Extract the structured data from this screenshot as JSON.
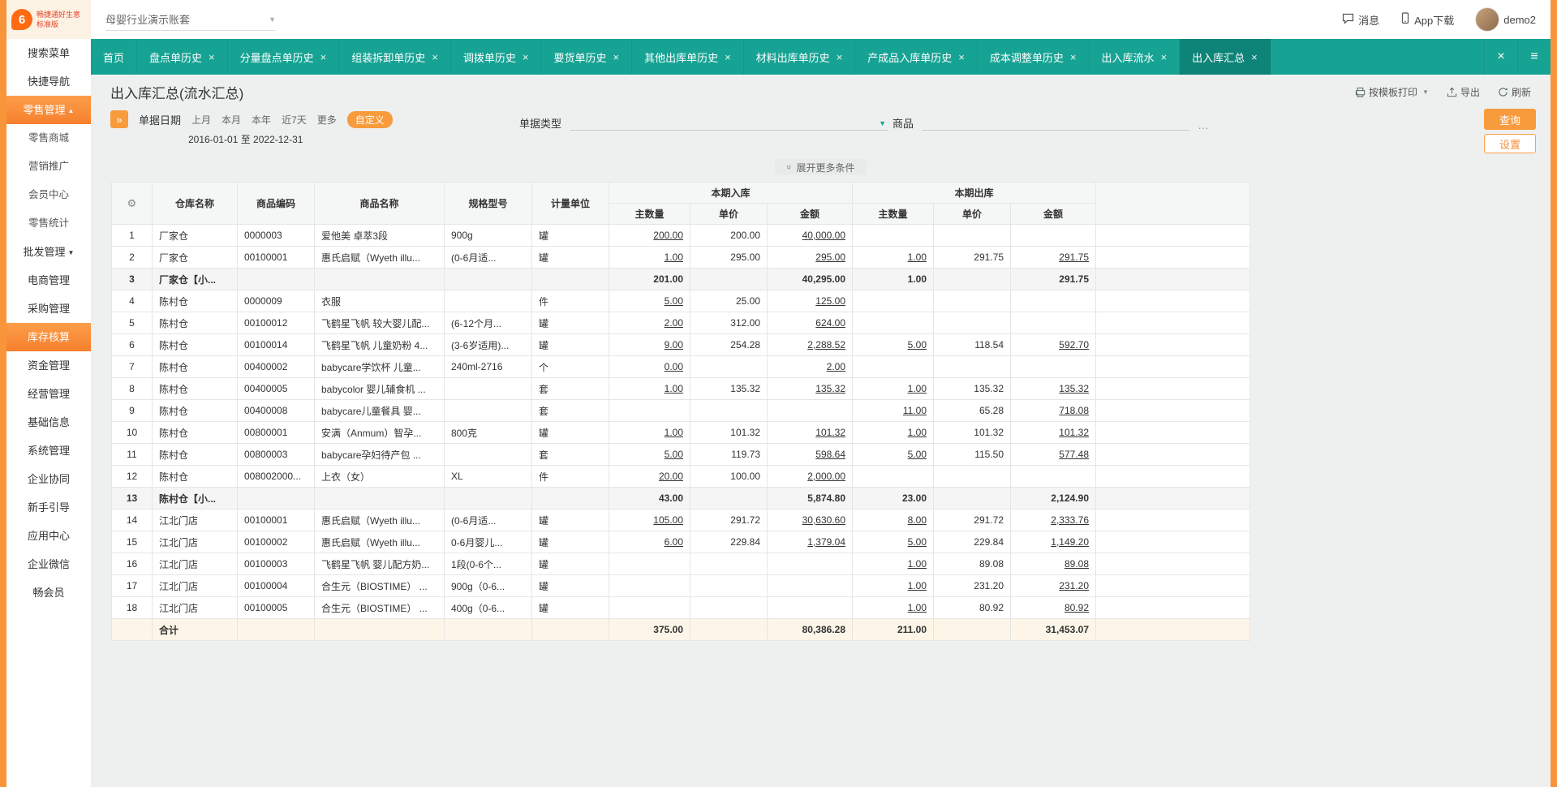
{
  "colors": {
    "teal": "#17a394",
    "teal_active_tab": "#0e8478",
    "orange": "#f89b3c",
    "edge_orange": "#f8953b",
    "total_row_bg": "#fdf5e7"
  },
  "icons": {
    "caret_down": "▼",
    "caret_up": "▲",
    "close": "×",
    "menu": "≡",
    "gear": "⚙",
    "ellipsis": "…",
    "chevrons": "»"
  },
  "topbar": {
    "brand": {
      "badge": "6",
      "name": "畅捷通好生意",
      "edition": "标准版"
    },
    "account_select": {
      "value": "母婴行业演示账套"
    },
    "messages_label": "消息",
    "app_download_label": "App下载",
    "username": "demo2"
  },
  "tabbar": {
    "tabs": [
      {
        "label": "首页",
        "closable": false,
        "active": false
      },
      {
        "label": "盘点单历史",
        "closable": true,
        "active": false
      },
      {
        "label": "分量盘点单历史",
        "closable": true,
        "active": false
      },
      {
        "label": "组装拆卸单历史",
        "closable": true,
        "active": false
      },
      {
        "label": "调拨单历史",
        "closable": true,
        "active": false
      },
      {
        "label": "要货单历史",
        "closable": true,
        "active": false
      },
      {
        "label": "其他出库单历史",
        "closable": true,
        "active": false
      },
      {
        "label": "材料出库单历史",
        "closable": true,
        "active": false
      },
      {
        "label": "产成品入库单历史",
        "closable": true,
        "active": false
      },
      {
        "label": "成本调整单历史",
        "closable": true,
        "active": false
      },
      {
        "label": "出入库流水",
        "closable": true,
        "active": false
      },
      {
        "label": "出入库汇总",
        "closable": true,
        "active": true
      }
    ]
  },
  "sidebar": {
    "items": [
      {
        "label": "搜索菜单",
        "style": ""
      },
      {
        "label": "快捷导航",
        "style": ""
      },
      {
        "label": "零售管理",
        "style": "orange",
        "arrow": "up"
      },
      {
        "label": "零售商城",
        "style": "sub"
      },
      {
        "label": "营销推广",
        "style": "sub"
      },
      {
        "label": "会员中心",
        "style": "sub"
      },
      {
        "label": "零售统计",
        "style": "sub"
      },
      {
        "label": "批发管理",
        "style": "",
        "arrow": "down"
      },
      {
        "label": "电商管理",
        "style": ""
      },
      {
        "label": "采购管理",
        "style": ""
      },
      {
        "label": "库存核算",
        "style": "active"
      },
      {
        "label": "资金管理",
        "style": ""
      },
      {
        "label": "经营管理",
        "style": ""
      },
      {
        "label": "基础信息",
        "style": ""
      },
      {
        "label": "系统管理",
        "style": ""
      },
      {
        "label": "企业协同",
        "style": ""
      },
      {
        "label": "新手引导",
        "style": ""
      },
      {
        "label": "应用中心",
        "style": ""
      },
      {
        "label": "企业微信",
        "style": ""
      },
      {
        "label": "畅会员",
        "style": ""
      }
    ]
  },
  "page": {
    "title": "出入库汇总(流水汇总)",
    "print_label": "按模板打印",
    "export_label": "导出",
    "refresh_label": "刷新"
  },
  "filters": {
    "date_label": "单据日期",
    "quick_options": [
      "上月",
      "本月",
      "本年",
      "近7天",
      "更多"
    ],
    "custom_label": "自定义",
    "date_range": "2016-01-01 至 2022-12-31",
    "doc_type_label": "单据类型",
    "product_label": "商品",
    "search_label": "查询",
    "settings_label": "设置",
    "expand_more_label": "展开更多条件"
  },
  "table": {
    "headers": [
      "仓库名称",
      "商品编码",
      "商品名称",
      "规格型号",
      "计量单位"
    ],
    "groups": [
      {
        "label": "本期入库",
        "cols": [
          "主数量",
          "单价",
          "金额"
        ]
      },
      {
        "label": "本期出库",
        "cols": [
          "主数量",
          "单价",
          "金额"
        ]
      }
    ],
    "rows": [
      {
        "no": "1",
        "warehouse": "厂家仓",
        "code": "0000003",
        "name": "爱他美 卓萃3段",
        "spec": "900g",
        "unit": "罐",
        "in": [
          "200.00",
          "200.00",
          "40,000.00"
        ],
        "out": [
          "",
          "",
          ""
        ],
        "type": "data"
      },
      {
        "no": "2",
        "warehouse": "厂家仓",
        "code": "00100001",
        "name": "惠氏启赋（Wyeth illu...",
        "spec": "(0-6月适...",
        "unit": "罐",
        "in": [
          "1.00",
          "295.00",
          "295.00"
        ],
        "out": [
          "1.00",
          "291.75",
          "291.75"
        ],
        "type": "data"
      },
      {
        "no": "3",
        "warehouse": "厂家仓【小...",
        "code": "",
        "name": "",
        "spec": "",
        "unit": "",
        "in": [
          "201.00",
          "",
          "40,295.00"
        ],
        "out": [
          "1.00",
          "",
          "291.75"
        ],
        "type": "subtotal"
      },
      {
        "no": "4",
        "warehouse": "陈村仓",
        "code": "0000009",
        "name": "衣服",
        "spec": "",
        "unit": "件",
        "in": [
          "5.00",
          "25.00",
          "125.00"
        ],
        "out": [
          "",
          "",
          ""
        ],
        "type": "data"
      },
      {
        "no": "5",
        "warehouse": "陈村仓",
        "code": "00100012",
        "name": "飞鹤星飞帆 较大婴儿配...",
        "spec": "(6-12个月...",
        "unit": "罐",
        "in": [
          "2.00",
          "312.00",
          "624.00"
        ],
        "out": [
          "",
          "",
          ""
        ],
        "type": "data"
      },
      {
        "no": "6",
        "warehouse": "陈村仓",
        "code": "00100014",
        "name": "飞鹤星飞帆 儿童奶粉 4...",
        "spec": "(3-6岁适用)...",
        "unit": "罐",
        "in": [
          "9.00",
          "254.28",
          "2,288.52"
        ],
        "out": [
          "5.00",
          "118.54",
          "592.70"
        ],
        "type": "data"
      },
      {
        "no": "7",
        "warehouse": "陈村仓",
        "code": "00400002",
        "name": "babycare学饮杯 儿童...",
        "spec": "240ml-2716",
        "unit": "个",
        "in": [
          "0.00",
          "",
          "2.00"
        ],
        "out": [
          "",
          "",
          ""
        ],
        "type": "data"
      },
      {
        "no": "8",
        "warehouse": "陈村仓",
        "code": "00400005",
        "name": "babycolor 婴儿辅食机 ...",
        "spec": "",
        "unit": "套",
        "in": [
          "1.00",
          "135.32",
          "135.32"
        ],
        "out": [
          "1.00",
          "135.32",
          "135.32"
        ],
        "type": "data"
      },
      {
        "no": "9",
        "warehouse": "陈村仓",
        "code": "00400008",
        "name": "babycare儿童餐具 婴...",
        "spec": "",
        "unit": "套",
        "in": [
          "",
          "",
          ""
        ],
        "out": [
          "11.00",
          "65.28",
          "718.08"
        ],
        "type": "data"
      },
      {
        "no": "10",
        "warehouse": "陈村仓",
        "code": "00800001",
        "name": "安满（Anmum）智孕...",
        "spec": "800克",
        "unit": "罐",
        "in": [
          "1.00",
          "101.32",
          "101.32"
        ],
        "out": [
          "1.00",
          "101.32",
          "101.32"
        ],
        "type": "data"
      },
      {
        "no": "11",
        "warehouse": "陈村仓",
        "code": "00800003",
        "name": "babycare孕妇待产包 ...",
        "spec": "",
        "unit": "套",
        "in": [
          "5.00",
          "119.73",
          "598.64"
        ],
        "out": [
          "5.00",
          "115.50",
          "577.48"
        ],
        "type": "data"
      },
      {
        "no": "12",
        "warehouse": "陈村仓",
        "code": "008002000...",
        "name": "上衣（女）",
        "spec": "XL",
        "unit": "件",
        "in": [
          "20.00",
          "100.00",
          "2,000.00"
        ],
        "out": [
          "",
          "",
          ""
        ],
        "type": "data"
      },
      {
        "no": "13",
        "warehouse": "陈村仓【小...",
        "code": "",
        "name": "",
        "spec": "",
        "unit": "",
        "in": [
          "43.00",
          "",
          "5,874.80"
        ],
        "out": [
          "23.00",
          "",
          "2,124.90"
        ],
        "type": "subtotal"
      },
      {
        "no": "14",
        "warehouse": "江北门店",
        "code": "00100001",
        "name": "惠氏启赋（Wyeth illu...",
        "spec": "(0-6月适...",
        "unit": "罐",
        "in": [
          "105.00",
          "291.72",
          "30,630.60"
        ],
        "out": [
          "8.00",
          "291.72",
          "2,333.76"
        ],
        "type": "data"
      },
      {
        "no": "15",
        "warehouse": "江北门店",
        "code": "00100002",
        "name": "惠氏启赋（Wyeth illu...",
        "spec": "0-6月婴儿...",
        "unit": "罐",
        "in": [
          "6.00",
          "229.84",
          "1,379.04"
        ],
        "out": [
          "5.00",
          "229.84",
          "1,149.20"
        ],
        "type": "data"
      },
      {
        "no": "16",
        "warehouse": "江北门店",
        "code": "00100003",
        "name": "飞鹤星飞帆 婴儿配方奶...",
        "spec": "1段(0-6个...",
        "unit": "罐",
        "in": [
          "",
          "",
          ""
        ],
        "out": [
          "1.00",
          "89.08",
          "89.08"
        ],
        "type": "data"
      },
      {
        "no": "17",
        "warehouse": "江北门店",
        "code": "00100004",
        "name": "合生元（BIOSTIME） ...",
        "spec": "900g（0-6...",
        "unit": "罐",
        "in": [
          "",
          "",
          ""
        ],
        "out": [
          "1.00",
          "231.20",
          "231.20"
        ],
        "type": "data"
      },
      {
        "no": "18",
        "warehouse": "江北门店",
        "code": "00100005",
        "name": "合生元（BIOSTIME） ...",
        "spec": "400g（0-6...",
        "unit": "罐",
        "in": [
          "",
          "",
          ""
        ],
        "out": [
          "1.00",
          "80.92",
          "80.92"
        ],
        "type": "data"
      },
      {
        "no": "",
        "warehouse": "合计",
        "code": "",
        "name": "",
        "spec": "",
        "unit": "",
        "in": [
          "375.00",
          "",
          "80,386.28"
        ],
        "out": [
          "211.00",
          "",
          "31,453.07"
        ],
        "type": "total"
      }
    ]
  }
}
